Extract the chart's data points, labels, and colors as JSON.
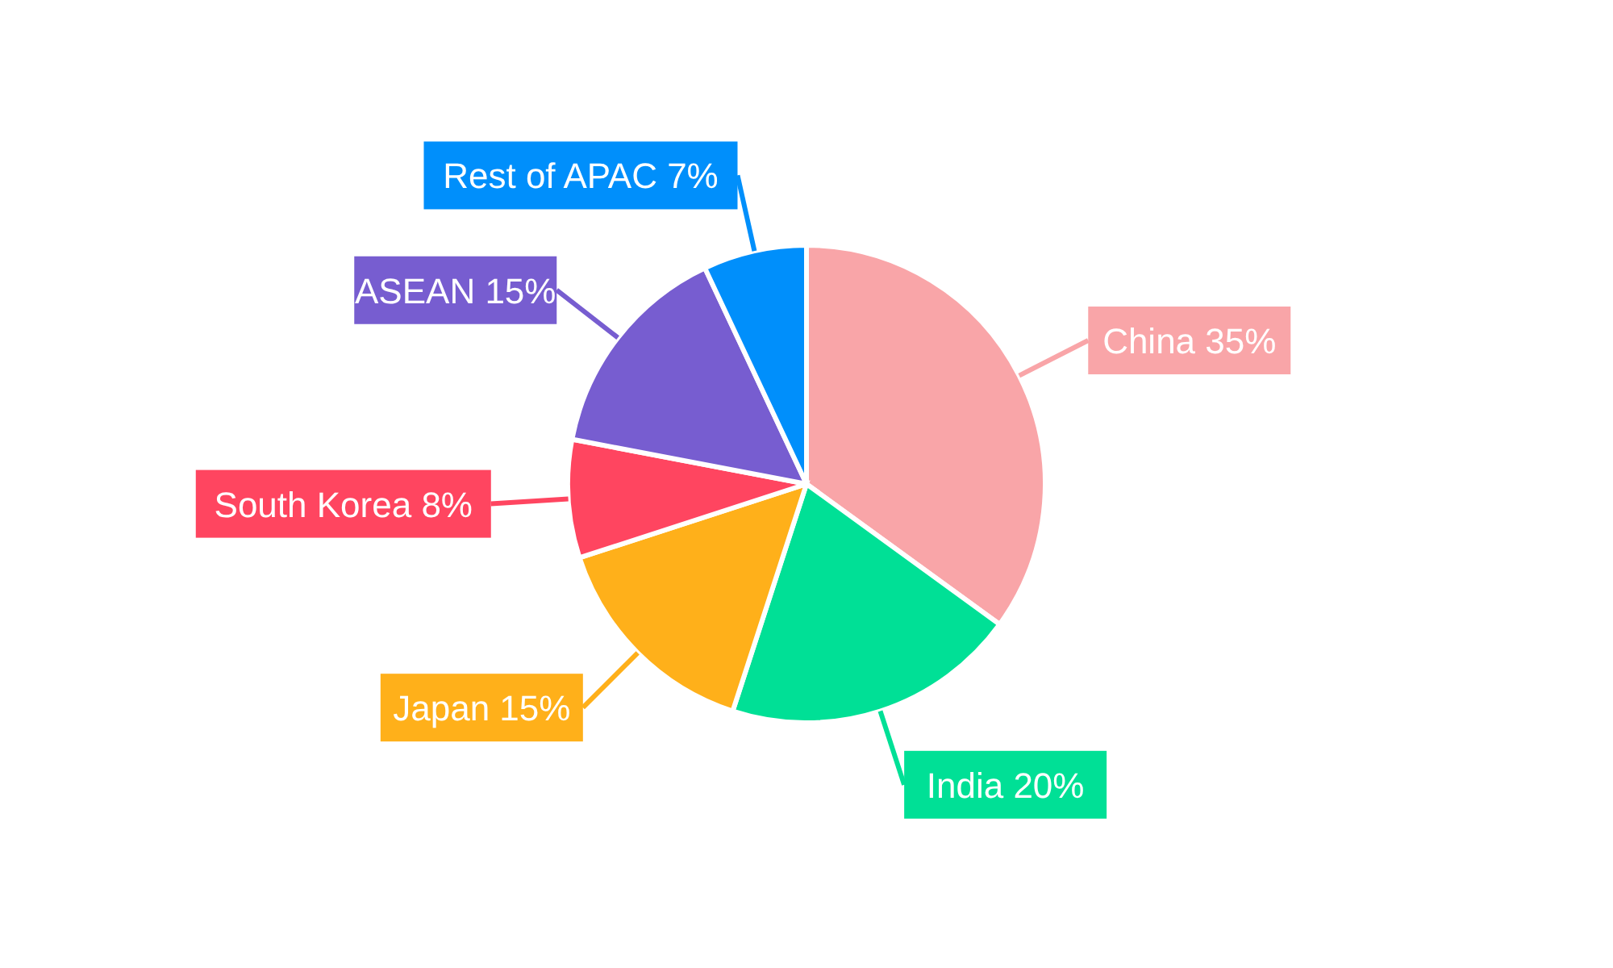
{
  "chart_data": {
    "type": "pie",
    "categories": [
      "China",
      "India",
      "Japan",
      "South Korea",
      "ASEAN",
      "Rest of APAC"
    ],
    "values": [
      35,
      20,
      15,
      8,
      15,
      7
    ],
    "value_labels": [
      "35%",
      "20%",
      "15%",
      "8%",
      "15%",
      "7%"
    ],
    "colors": [
      "#f9a5a8",
      "#00e096",
      "#ffb01a",
      "#ff4560",
      "#775dd0",
      "#008ffb"
    ]
  }
}
